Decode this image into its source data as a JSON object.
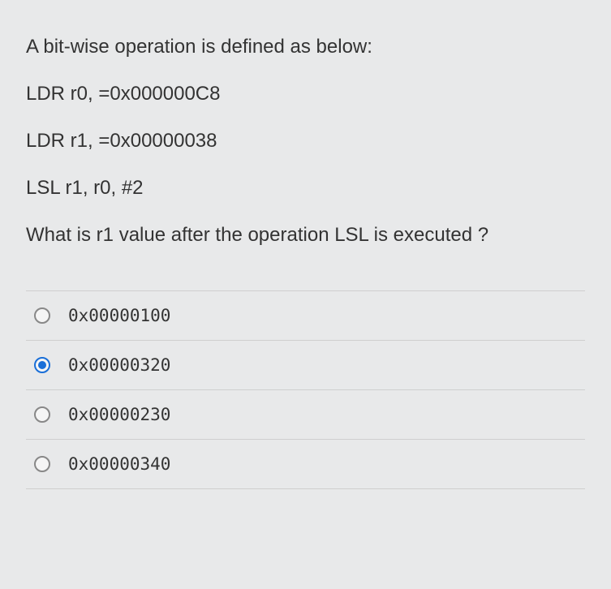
{
  "question": {
    "intro": "A bit-wise operation is defined as below:",
    "lines": [
      "LDR  r0, =0x000000C8",
      "LDR  r1, =0x00000038",
      "LSL  r1, r0, #2"
    ],
    "prompt": "What is r1 value after the operation LSL is executed ?"
  },
  "options": [
    {
      "label": "0x00000100",
      "selected": false
    },
    {
      "label": "0x00000320",
      "selected": true
    },
    {
      "label": "0x00000230",
      "selected": false
    },
    {
      "label": "0x00000340",
      "selected": false
    }
  ],
  "colors": {
    "background": "#e8e9ea",
    "text": "#333",
    "divider": "#cfcfcf",
    "radio_border": "#888",
    "radio_selected": "#1a6fd8"
  }
}
